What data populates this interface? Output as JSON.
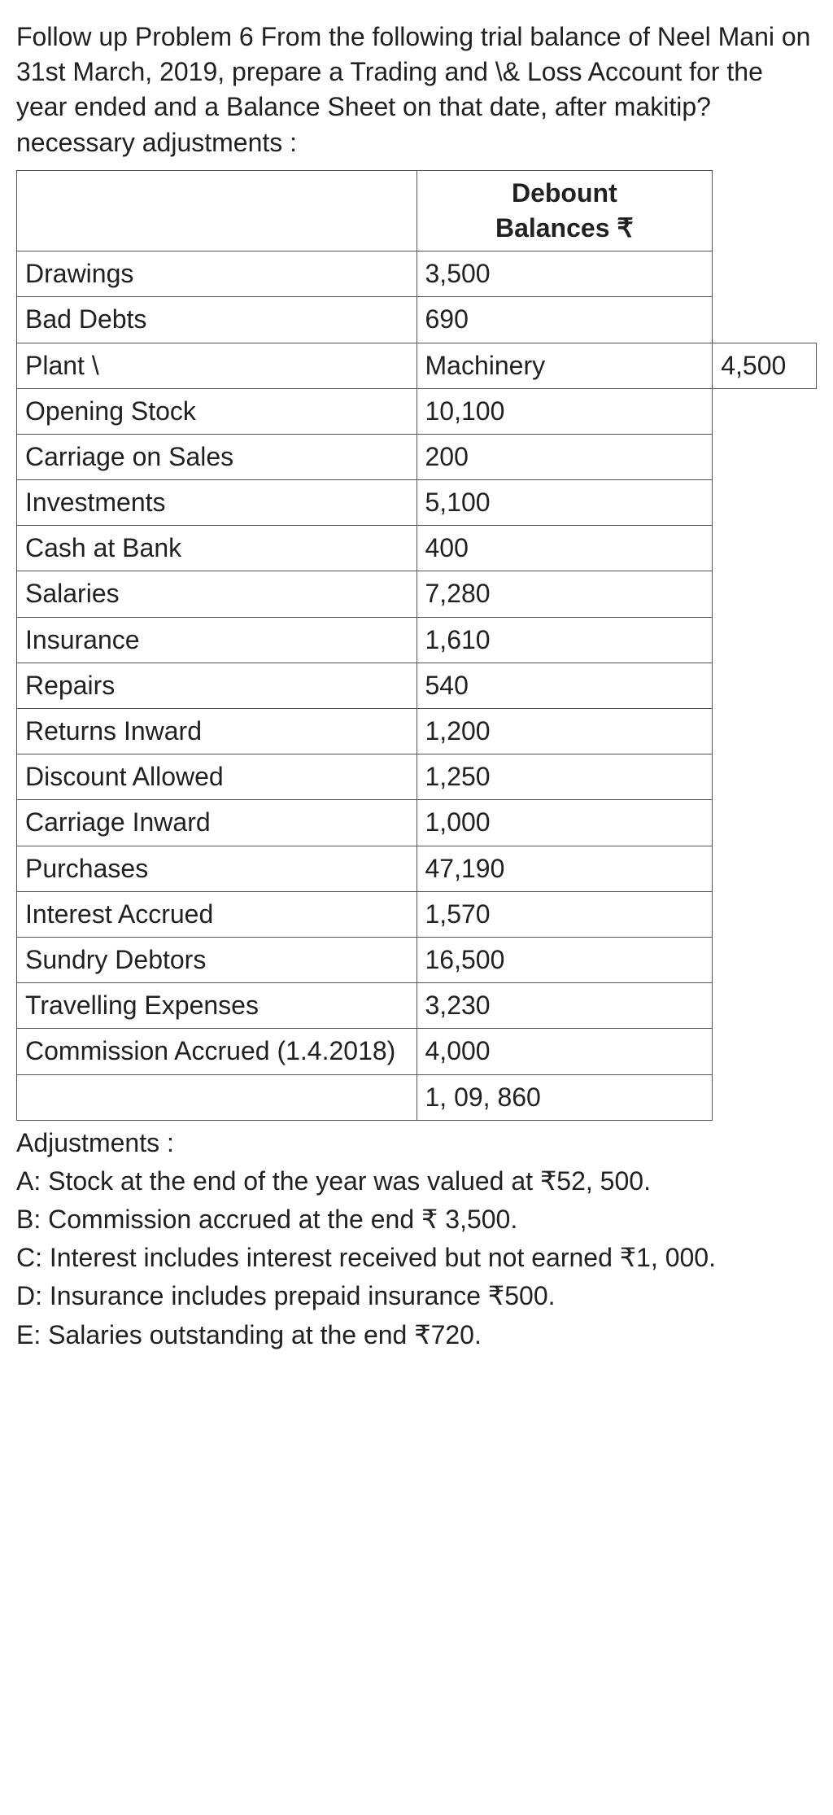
{
  "intro_text": "Follow up Problem 6 From the following trial balance of Neel Mani on 31st March, 2019, prepare a Trading and \\& Loss Account for the year ended and a Balance Sheet on that date, after makitip? necessary adjustments :",
  "table": {
    "header_line1": "Debount",
    "header_line2": "Balances ₹",
    "rows": [
      {
        "label": "Drawings",
        "value": "3,500",
        "outside": ""
      },
      {
        "label": "Bad Debts",
        "value": "690",
        "outside": ""
      },
      {
        "label": "Plant \\",
        "value": "Machinery",
        "outside": "4,500"
      },
      {
        "label": "Opening Stock",
        "value": "10,100",
        "outside": ""
      },
      {
        "label": "Carriage on Sales",
        "value": "200",
        "outside": ""
      },
      {
        "label": "Investments",
        "value": "5,100",
        "outside": ""
      },
      {
        "label": "Cash at Bank",
        "value": "400",
        "outside": ""
      },
      {
        "label": "Salaries",
        "value": "7,280",
        "outside": ""
      },
      {
        "label": "Insurance",
        "value": "1,610",
        "outside": ""
      },
      {
        "label": "Repairs",
        "value": "540",
        "outside": ""
      },
      {
        "label": "Returns Inward",
        "value": "1,200",
        "outside": ""
      },
      {
        "label": "Discount Allowed",
        "value": "1,250",
        "outside": ""
      },
      {
        "label": "Carriage Inward",
        "value": "1,000",
        "outside": ""
      },
      {
        "label": "Purchases",
        "value": "47,190",
        "outside": ""
      },
      {
        "label": "Interest Accrued",
        "value": "1,570",
        "outside": ""
      },
      {
        "label": "Sundry Debtors",
        "value": "16,500",
        "outside": ""
      },
      {
        "label": "Travelling Expenses",
        "value": "3,230",
        "outside": ""
      },
      {
        "label": "Commission Accrued (1.4.2018)",
        "value": "4,000",
        "outside": ""
      }
    ],
    "total_value": "1, 09, 860"
  },
  "adjustments": {
    "heading": "Adjustments :",
    "items": [
      "A:  Stock at the end of the year was valued at ₹52, 500.",
      "B:  Commission accrued at the end ₹ 3,500.",
      "C:  Interest includes interest received but not earned ₹1, 000.",
      "D:  Insurance includes prepaid insurance ₹500.",
      "E:  Salaries outstanding at the end ₹720."
    ]
  }
}
